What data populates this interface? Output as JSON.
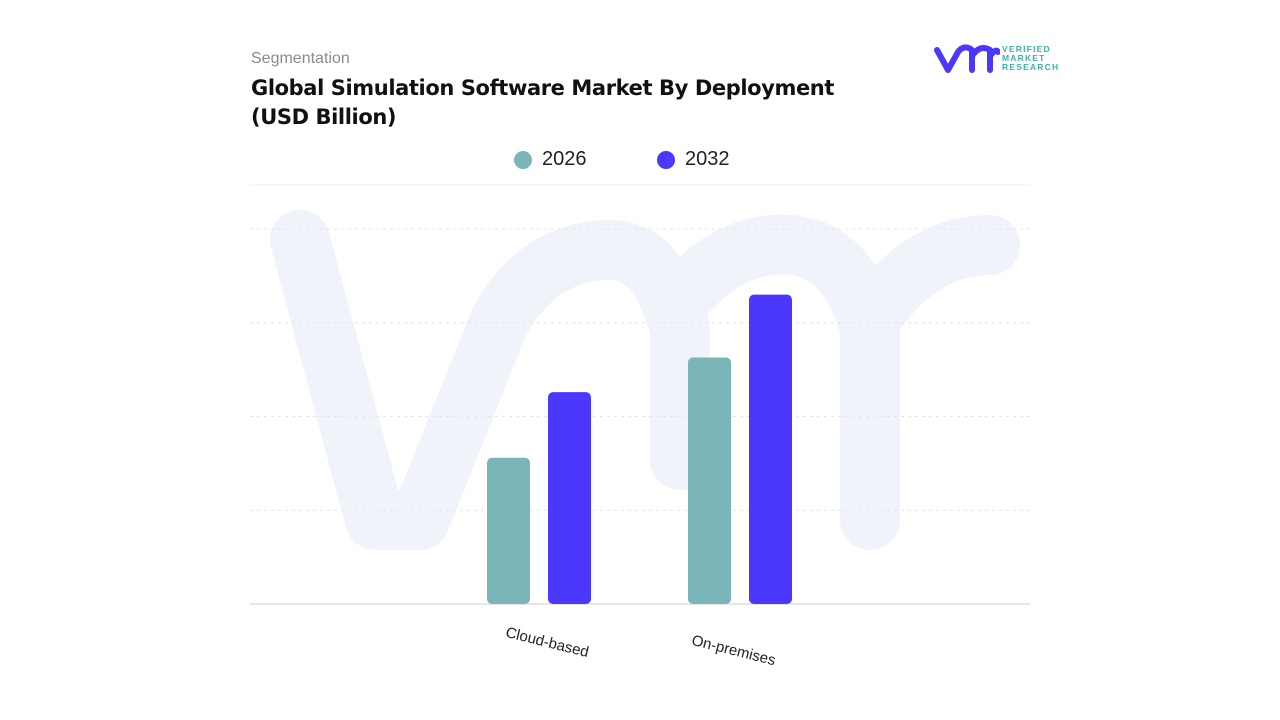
{
  "header": {
    "segment_label": "Segmentation",
    "title": "Global Simulation Software Market By Deployment (USD Billion)"
  },
  "logo": {
    "text_lines": [
      "VERIFIED",
      "MARKET",
      "RESEARCH"
    ],
    "mark": "vmr"
  },
  "chart_data": {
    "type": "bar",
    "title": "Global Simulation Software Market By Deployment (USD Billion)",
    "categories": [
      "Cloud-based",
      "On-premises"
    ],
    "series": [
      {
        "name": "2026",
        "color": "#7ab5b7",
        "values": [
          1.56,
          2.63
        ]
      },
      {
        "name": "2032",
        "color": "#4b38fc",
        "values": [
          2.26,
          3.3
        ]
      }
    ],
    "ylim": [
      0,
      4
    ],
    "grid": true,
    "legend": "top-center",
    "xlabel": "",
    "ylabel": ""
  }
}
